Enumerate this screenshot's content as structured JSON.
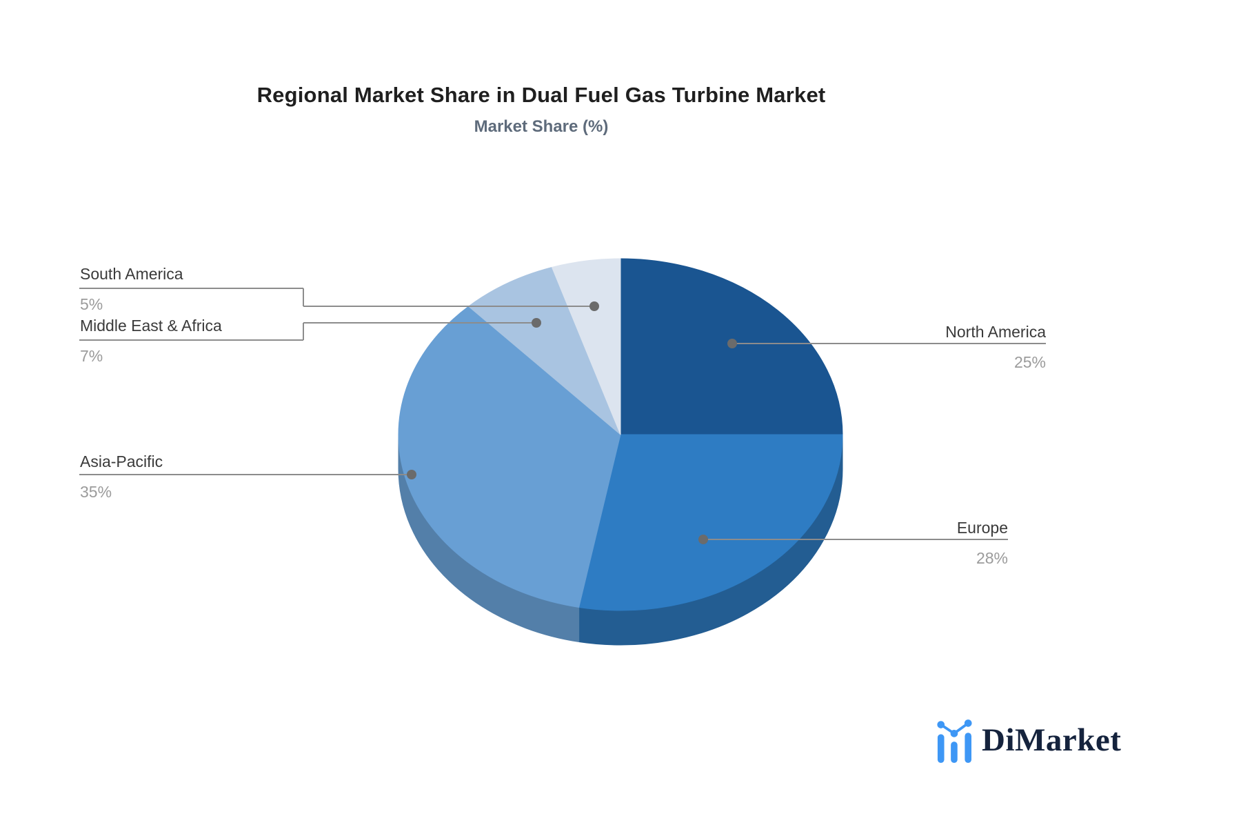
{
  "title": "Regional Market Share in Dual Fuel Gas Turbine Market",
  "subtitle": "Market Share (%)",
  "chart_data": {
    "type": "pie",
    "title": "Regional Market Share in Dual Fuel Gas Turbine Market",
    "subtitle": "Market Share (%)",
    "unit": "%",
    "direction": "clockwise",
    "start_angle": "12-o-clock",
    "effect_3d": true,
    "legend_position": "callout-labels",
    "series": [
      {
        "name": "North America",
        "value": 25,
        "label": "25%",
        "color": "#1A5591",
        "side_color": "#133F6C"
      },
      {
        "name": "Europe",
        "value": 28,
        "label": "28%",
        "color": "#2E7CC3",
        "side_color": "#235D92"
      },
      {
        "name": "Asia-Pacific",
        "value": 35,
        "label": "35%",
        "color": "#689FD4",
        "side_color": "#537FA9"
      },
      {
        "name": "Middle East & Africa",
        "value": 7,
        "label": "7%",
        "color": "#A9C4E1",
        "side_color": "#8194AB"
      },
      {
        "name": "South America",
        "value": 5,
        "label": "5%",
        "color": "#DCE4EF",
        "side_color": "#A9B4C2"
      }
    ]
  },
  "style": {
    "connector_color": "#8C8C8C",
    "dot_color": "#6B6B6B",
    "label_text_color": "#3A3A3A",
    "value_text_color": "#9B9B9B"
  },
  "brand": {
    "name": "DiMarket",
    "icon": "bar-line-chart-icon",
    "icon_color": "#3E97F5",
    "text_color": "#15233D"
  }
}
